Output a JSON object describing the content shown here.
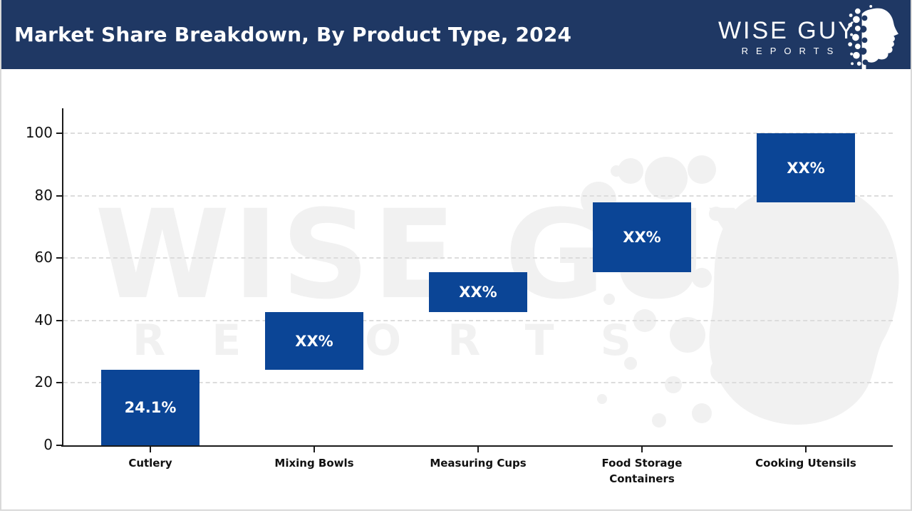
{
  "header": {
    "title": "Market Share Breakdown, By Product Type, 2024",
    "background_color": "#1f3864",
    "logo": {
      "line1": "WISE GUY",
      "line2": "REPORTS"
    }
  },
  "watermark": {
    "line1": "WISE GUY",
    "line2": "REPORTS"
  },
  "chart_data": {
    "type": "bar",
    "subtype": "floating-segment-waterfall",
    "title": "Market Share Breakdown, By Product Type, 2024",
    "categories": [
      "Cutlery",
      "Mixing Bowls",
      "Measuring Cups",
      "Food Storage Containers",
      "Cooking Utensils"
    ],
    "series": [
      {
        "name": "Market share (%)",
        "segment_start": [
          0,
          24.1,
          42.7,
          55.4,
          77.8
        ],
        "segment_end": [
          24.1,
          42.7,
          55.4,
          77.8,
          100
        ]
      }
    ],
    "bar_labels": [
      "24.1%",
      "XX%",
      "XX%",
      "XX%",
      "XX%"
    ],
    "xlabel": "",
    "ylabel": "",
    "y_ticks": [
      0,
      20,
      40,
      60,
      80,
      100
    ],
    "ylim": [
      0,
      108
    ],
    "grid": "horizontal-dashed",
    "legend": "none",
    "bar_color": "#0b4596",
    "bar_label_color": "#ffffff",
    "axis_color": "#1a1a1a",
    "gridline_color": "#dcdcdc",
    "watermark_color": "#f1f1f1"
  }
}
